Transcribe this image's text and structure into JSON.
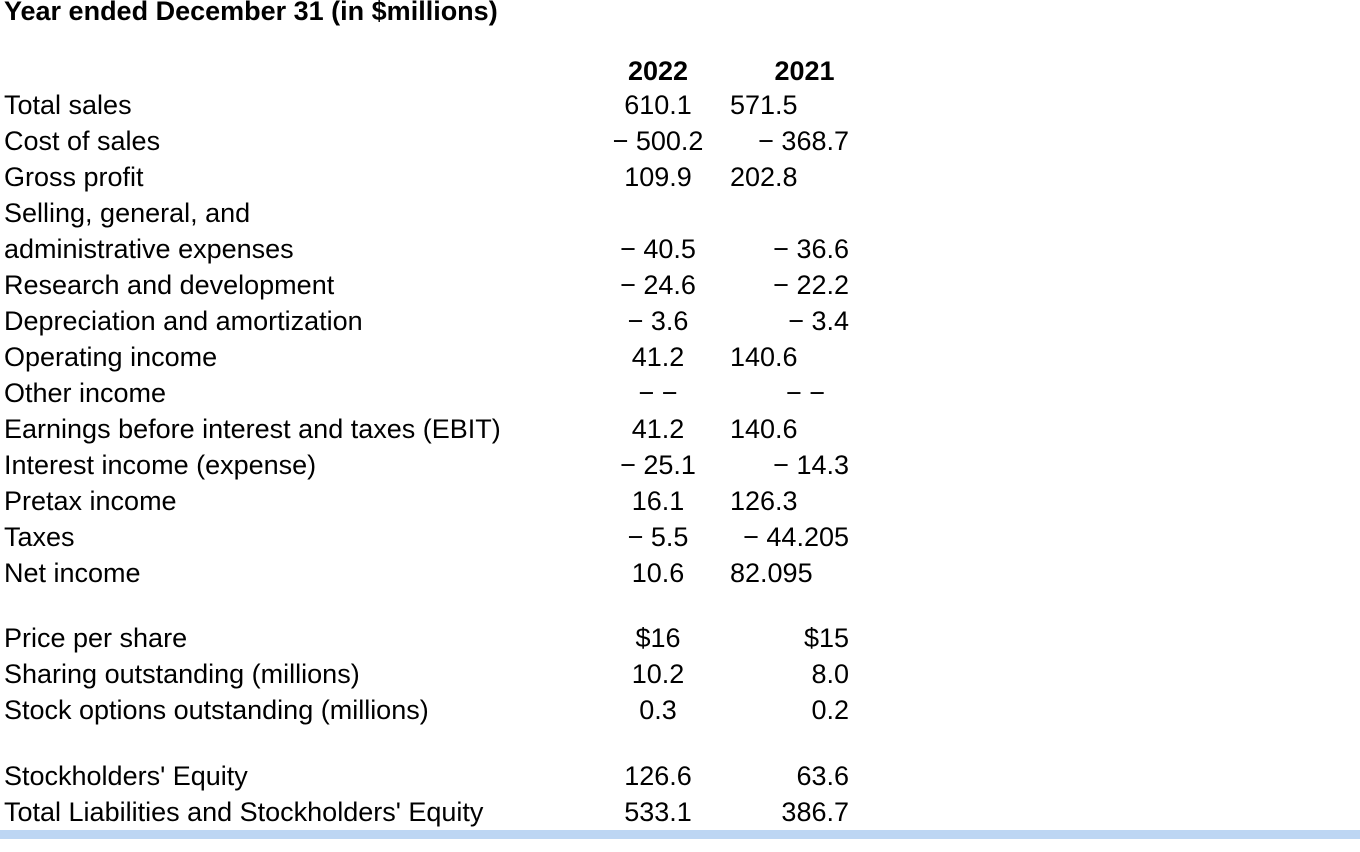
{
  "title": "Year ended December 31 (in $millions)",
  "columns": [
    "2022",
    "2021"
  ],
  "sections": [
    {
      "name": "income-statement",
      "rows": [
        {
          "label": "Total sales",
          "v2022": "610.1",
          "v2021": "571.5"
        },
        {
          "label": "Cost of sales",
          "v2022": "− 500.2",
          "v2021": "− 368.7"
        },
        {
          "label": "Gross profit",
          "v2022": "109.9",
          "v2021": "202.8"
        },
        {
          "label": "Selling, general, and",
          "v2022": "",
          "v2021": ""
        },
        {
          "label": "administrative expenses",
          "v2022": "− 40.5",
          "v2021": "− 36.6"
        },
        {
          "label": "Research and development",
          "v2022": "− 24.6",
          "v2021": "− 22.2"
        },
        {
          "label": "Depreciation and amortization",
          "v2022": "− 3.6",
          "v2021": "− 3.4"
        },
        {
          "label": "Operating income",
          "v2022": "41.2",
          "v2021": "140.6"
        },
        {
          "label": "Other income",
          "v2022": "− −",
          "v2021": "− −"
        },
        {
          "label": "Earnings before interest and taxes (EBIT)",
          "v2022": "41.2",
          "v2021": "140.6"
        },
        {
          "label": "Interest income (expense)",
          "v2022": "− 25.1",
          "v2021": "− 14.3"
        },
        {
          "label": "Pretax income",
          "v2022": "16.1",
          "v2021": "126.3"
        },
        {
          "label": "Taxes",
          "v2022": "− 5.5",
          "v2021": "− 44.205"
        },
        {
          "label": "Net income",
          "v2022": "10.6",
          "v2021": "82.095"
        }
      ]
    },
    {
      "name": "share-data",
      "rows": [
        {
          "label": "Price per share",
          "v2022": "$16",
          "v2021": "$15"
        },
        {
          "label": "Sharing outstanding (millions)",
          "v2022": "10.2",
          "v2021": "8.0"
        },
        {
          "label": "Stock options outstanding (millions)",
          "v2022": "0.3",
          "v2021": "0.2"
        }
      ]
    },
    {
      "name": "equity",
      "rows": [
        {
          "label": "Stockholders' Equity",
          "v2022": "126.6",
          "v2021": "63.6"
        },
        {
          "label": "Total Liabilities and Stockholders' Equity",
          "v2022": "533.1",
          "v2021": "386.7"
        }
      ]
    }
  ],
  "colors": {
    "text": "#000000",
    "background": "#ffffff",
    "divider": "#bdd6f3"
  }
}
